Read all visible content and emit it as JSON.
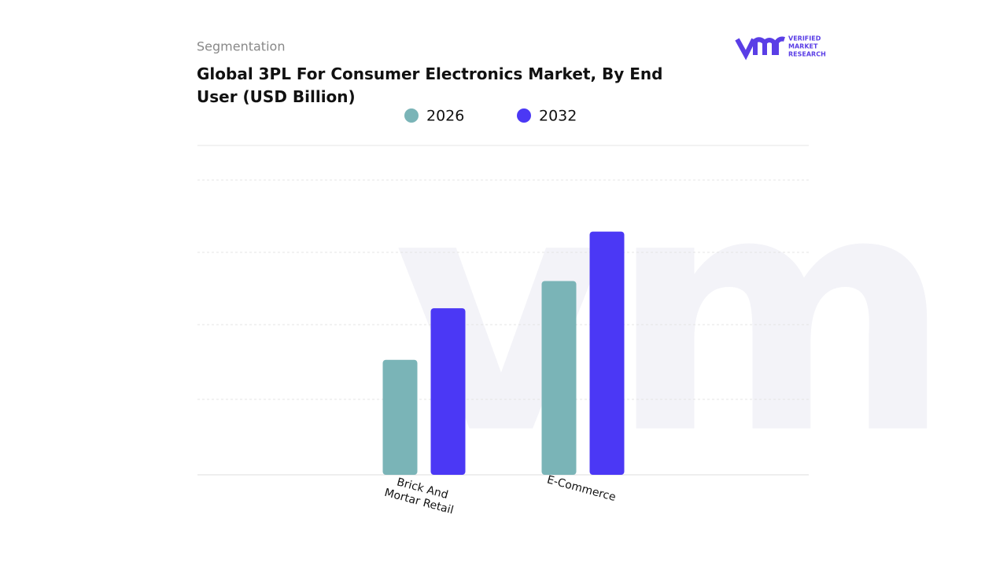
{
  "chart_data": {
    "type": "bar",
    "subtitle": "Segmentation",
    "title": "Global 3PL For Consumer Electronics Market, By End User (USD Billion)",
    "categories": [
      "Brick And Mortar Retail",
      "E-Commerce"
    ],
    "series": [
      {
        "name": "2026",
        "color": "#7ab4b7",
        "values": [
          1.56,
          2.63
        ]
      },
      {
        "name": "2032",
        "color": "#4b38f5",
        "values": [
          2.26,
          3.3
        ]
      }
    ],
    "ylim": [
      0,
      4
    ]
  },
  "logo": {
    "line1": "VERIFIED",
    "line2": "MARKET",
    "line3": "RESEARCH"
  }
}
